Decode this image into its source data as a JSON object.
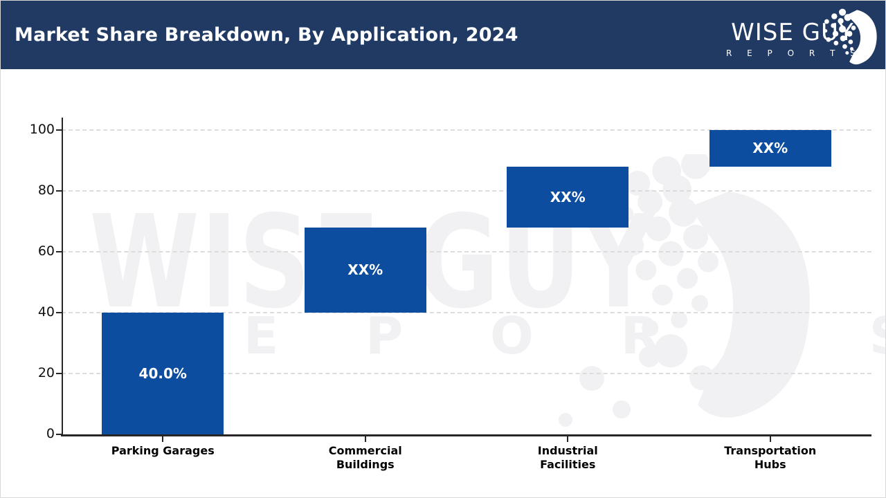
{
  "page": {
    "background": "#ffffff",
    "border_color": "#d9d9d9"
  },
  "header": {
    "background_color": "#213a64",
    "title": "Market Share Breakdown, By Application, 2024",
    "logo": {
      "line1": "WISE GUY",
      "line2": "R E P O R T S",
      "face_icon": "dotted-head-profile",
      "color": "#ffffff"
    }
  },
  "watermark": {
    "line1": "WISE GUY",
    "line2": "R E P O R T S",
    "color": "#f1f1f3"
  },
  "chart_data": {
    "type": "bar",
    "subtype": "waterfall",
    "title": "Market Share Breakdown, By Application, 2024",
    "categories": [
      "Parking Garages",
      "Commercial Buildings",
      "Industrial Facilities",
      "Transportation Hubs"
    ],
    "category_label_lines": [
      [
        "Parking Garages"
      ],
      [
        "Commercial",
        "Buildings"
      ],
      [
        "Industrial",
        "Facilities"
      ],
      [
        "Transportation",
        "Hubs"
      ]
    ],
    "segments": [
      {
        "category": "Parking Garages",
        "start": 0,
        "end": 40,
        "label": "40.0%"
      },
      {
        "category": "Commercial Buildings",
        "start": 40,
        "end": 68,
        "label": "XX%"
      },
      {
        "category": "Industrial Facilities",
        "start": 68,
        "end": 88,
        "label": "XX%"
      },
      {
        "category": "Transportation Hubs",
        "start": 88,
        "end": 100,
        "label": "XX%"
      }
    ],
    "xlabel": "",
    "ylabel": "",
    "ylim": [
      0,
      100
    ],
    "yticks": [
      0,
      20,
      40,
      60,
      80,
      100
    ],
    "grid": {
      "axis": "y",
      "style": "dashed",
      "color": "#dcdcdc"
    },
    "legend": "none",
    "bar_color": "#0c4da0",
    "bar_label_color": "#ffffff",
    "axis_color": "#262626"
  }
}
